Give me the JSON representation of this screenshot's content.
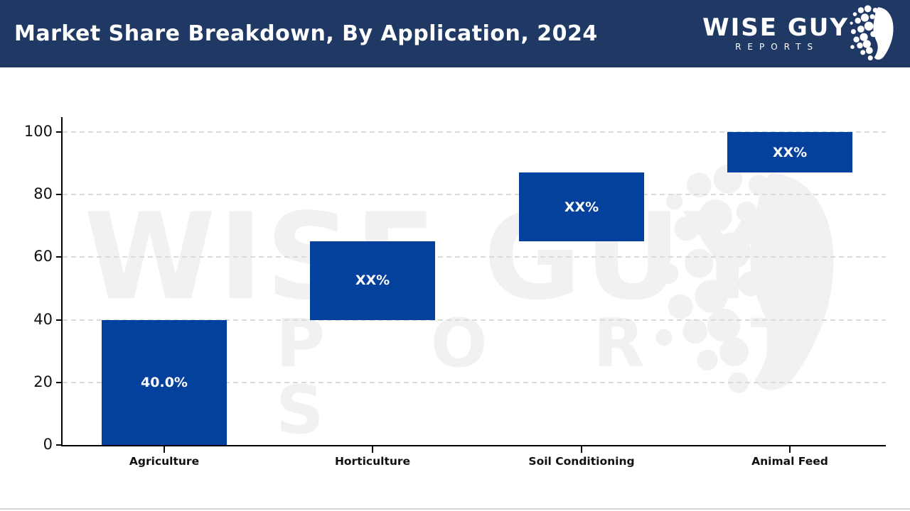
{
  "header": {
    "title": "Market Share Breakdown, By Application, 2024",
    "bg_color": "#1f3864",
    "logo": {
      "line1": "WISE GUY",
      "line2": "REPORTS",
      "face_icon": "dotted-head-profile-icon"
    }
  },
  "watermark": {
    "line1": "WISE GUY",
    "line2": "P O R T S",
    "face_icon": "dotted-head-profile-icon"
  },
  "chart_data": {
    "type": "bar",
    "subtype": "waterfall",
    "title": "Market Share Breakdown, By Application, 2024",
    "xlabel": "",
    "ylabel": "",
    "categories": [
      "Agriculture",
      "Horticulture",
      "Soil Conditioning",
      "Animal Feed"
    ],
    "segments": [
      {
        "category": "Agriculture",
        "start": 0,
        "end": 40,
        "value": 40,
        "label": "40.0%"
      },
      {
        "category": "Horticulture",
        "start": 40,
        "end": 65,
        "value": 25,
        "label": "XX%"
      },
      {
        "category": "Soil Conditioning",
        "start": 65,
        "end": 87,
        "value": 22,
        "label": "XX%"
      },
      {
        "category": "Animal Feed",
        "start": 87,
        "end": 100,
        "value": 13,
        "label": "XX%"
      }
    ],
    "yticks": [
      0,
      20,
      40,
      60,
      80,
      100
    ],
    "ylim": [
      0,
      105
    ],
    "grid": "horizontal-dashed",
    "legend": "none",
    "bar_color": "#04419c",
    "bar_label_color": "#ffffff",
    "axis_color": "#000000",
    "grid_color": "#dadada"
  }
}
